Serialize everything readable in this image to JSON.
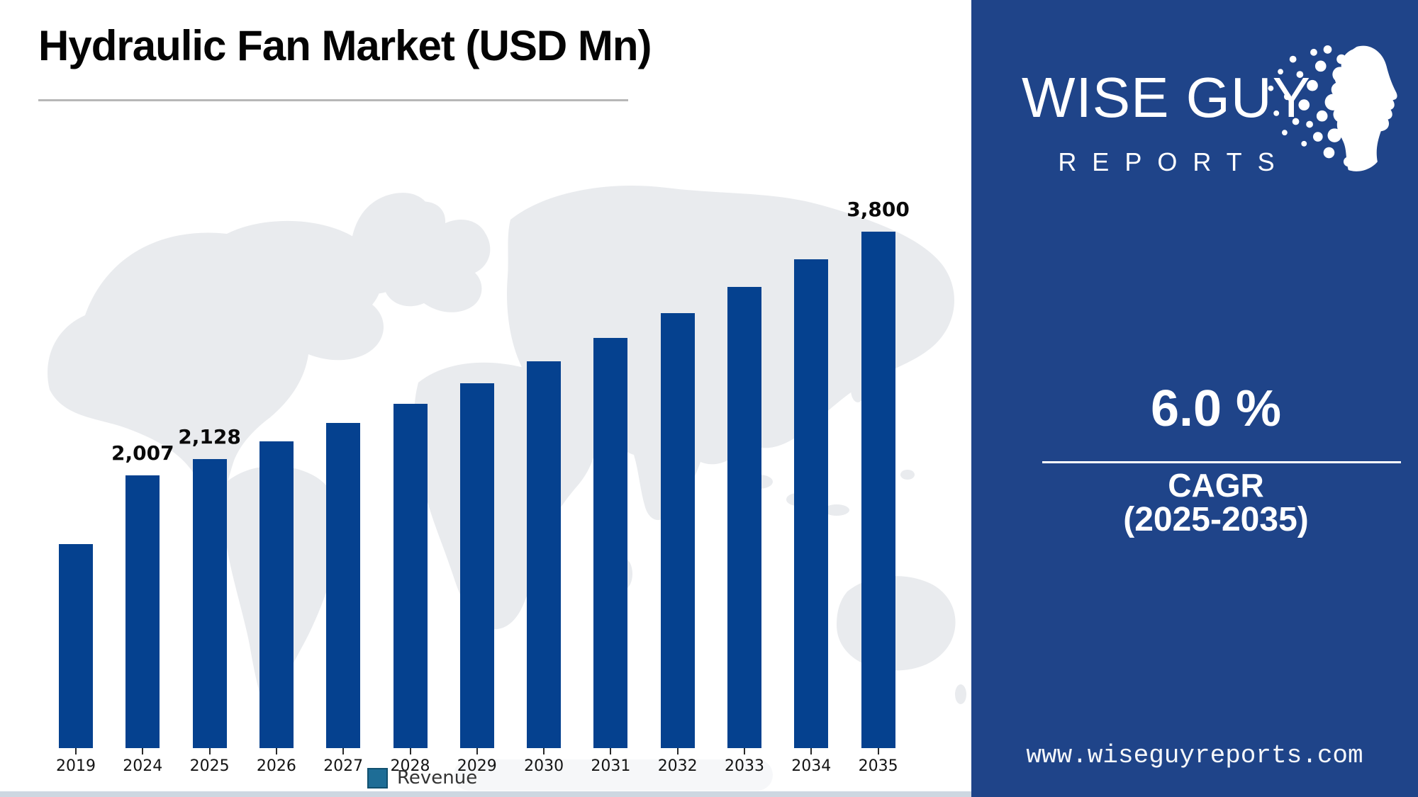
{
  "title": "Hydraulic Fan Market (USD Mn)",
  "chart_data": {
    "type": "bar",
    "title": "Hydraulic Fan Market (USD Mn)",
    "categories": [
      "2019",
      "2024",
      "2025",
      "2026",
      "2027",
      "2028",
      "2029",
      "2030",
      "2031",
      "2032",
      "2033",
      "2034",
      "2035"
    ],
    "values": [
      1500,
      2007,
      2128,
      2256,
      2391,
      2535,
      2687,
      2848,
      3019,
      3200,
      3392,
      3596,
      3800
    ],
    "bar_labels": [
      "",
      "2,007",
      "2,128",
      "",
      "",
      "",
      "",
      "",
      "",
      "",
      "",
      "",
      "3,800"
    ],
    "ylim": [
      0,
      4000
    ],
    "grid": false,
    "bar_color": "#05418f",
    "legend": {
      "position": "bottom",
      "entries": [
        {
          "label": "Revenue",
          "color": "#1e6d96"
        }
      ]
    }
  },
  "side_panel": {
    "logo": {
      "line1": "WISE GUY",
      "line2": "REPORTS"
    },
    "cagr_value": "6.0 %",
    "cagr_line1": "CAGR",
    "cagr_line2": "(2025-2035)",
    "website": "www.wiseguyreports.com",
    "bg_color": "#1f4489"
  },
  "colors": {
    "bar": "#05418f",
    "panel_bg": "#1f4489",
    "legend_swatch": "#1e6d96",
    "map_watermark": "#e9ebee",
    "bottom_strip": "#cdd7e1",
    "title_underline": "#b7b7b7"
  }
}
